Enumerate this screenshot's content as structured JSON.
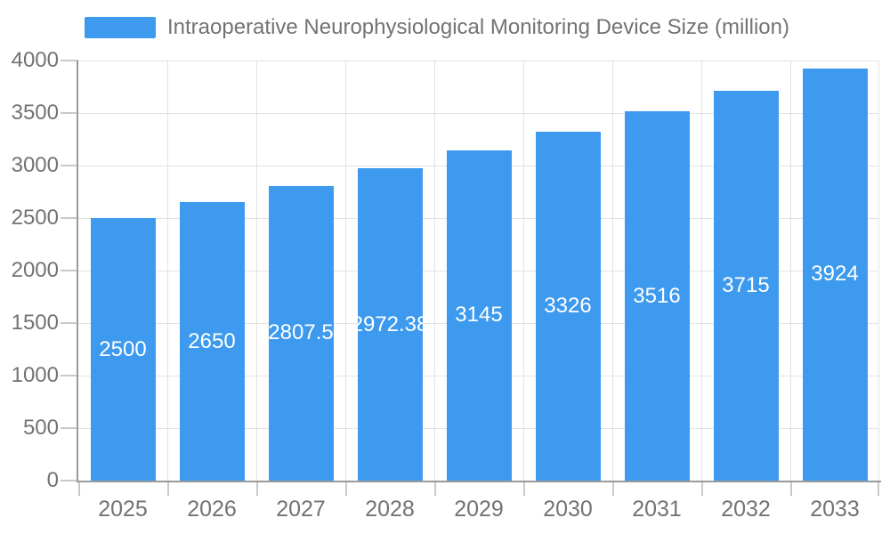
{
  "legend": {
    "label": "Intraoperative Neurophysiological Monitoring Device Size (million)"
  },
  "colors": {
    "bar": "#3D9AEF",
    "grid": "#E3E3E3",
    "axis": "#9A9A9A",
    "tick": "#C9C9C9",
    "text": "#737373",
    "bar_label": "#FFFFFF",
    "background": "#FFFFFF"
  },
  "chart_data": {
    "type": "bar",
    "title": "",
    "xlabel": "",
    "ylabel": "",
    "categories": [
      "2025",
      "2026",
      "2027",
      "2028",
      "2029",
      "2030",
      "2031",
      "2032",
      "2033"
    ],
    "series": [
      {
        "name": "Intraoperative Neurophysiological Monitoring Device Size (million)",
        "values": [
          2500,
          2650,
          2807.5,
          2972.38,
          3145,
          3326,
          3516,
          3715,
          3924
        ]
      }
    ],
    "bar_labels": [
      "2500",
      "2650",
      "2807.5",
      "2972.38",
      "3145",
      "3326",
      "3516",
      "3715",
      "3924"
    ],
    "ylim": [
      0,
      4000
    ],
    "ytick_step": 500,
    "ytick_labels": [
      "0",
      "500",
      "1000",
      "1500",
      "2000",
      "2500",
      "3000",
      "3500",
      "4000"
    ],
    "grid": true,
    "legend_position": "top-left",
    "bar_label_position": "inside-center"
  }
}
